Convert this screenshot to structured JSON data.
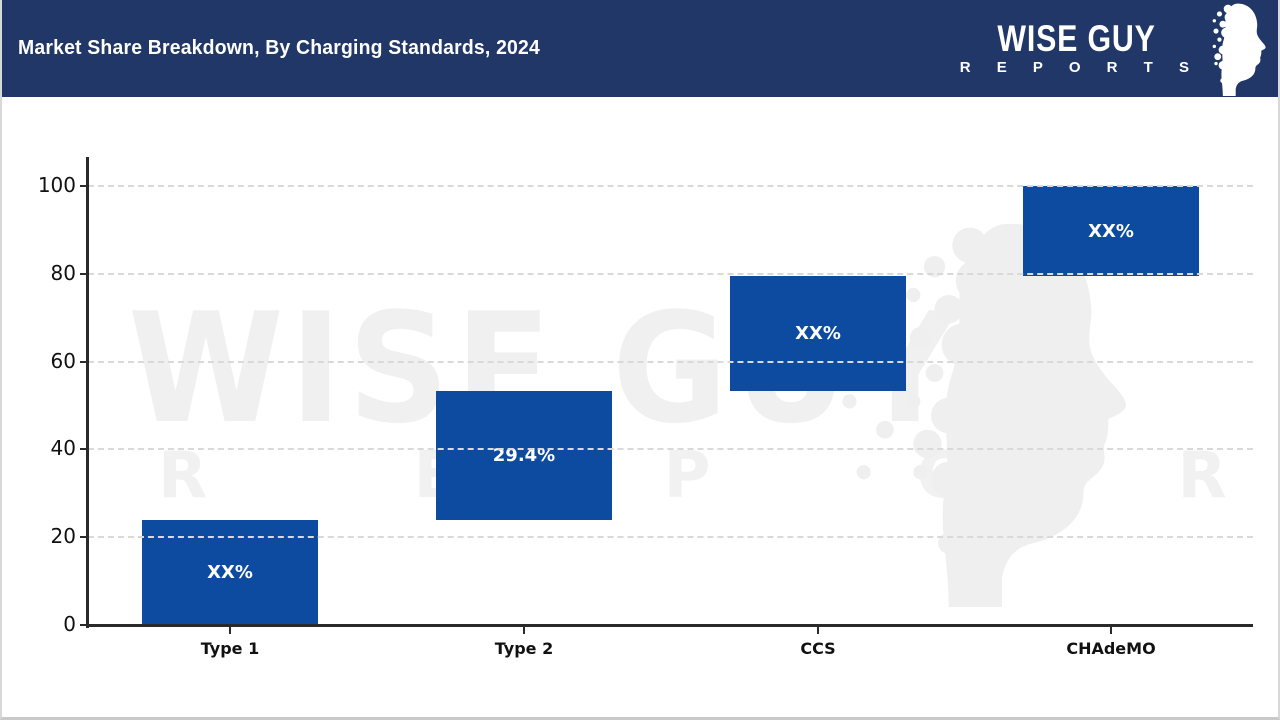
{
  "header": {
    "title": "Market Share Breakdown, By Charging Standards, 2024",
    "bg_color": "#203767",
    "logo": {
      "line1": "WISE GUY",
      "line2": "R E P O R T S",
      "icon": "wiseguy-head-icon"
    }
  },
  "watermark": {
    "line1": "WISE GUY",
    "line2": "R E P O R T S",
    "icon": "wiseguy-head-watermark-icon"
  },
  "chart_data": {
    "type": "bar",
    "subtype": "floating-waterfall",
    "title": "Market Share Breakdown, By Charging Standards, 2024",
    "xlabel": "",
    "ylabel": "",
    "categories": [
      "Type 1",
      "Type 2",
      "CCS",
      "CHAdeMO"
    ],
    "segments": [
      {
        "category": "Type 1",
        "start": 0,
        "end": 24,
        "label": "XX%"
      },
      {
        "category": "Type 2",
        "start": 24,
        "end": 53.4,
        "label": "29.4%"
      },
      {
        "category": "CCS",
        "start": 53.4,
        "end": 79.4,
        "label": "XX%"
      },
      {
        "category": "CHAdeMO",
        "start": 79.4,
        "end": 100,
        "label": "XX%"
      }
    ],
    "bar_labels": [
      "XX%",
      "29.4%",
      "XX%",
      "XX%"
    ],
    "y_ticks": [
      0,
      20,
      40,
      60,
      80,
      100
    ],
    "ylim": [
      0,
      107
    ],
    "bar_color": "#0c4ba0",
    "grid": "horizontal-dashed",
    "grid_color": "#d9d9d9",
    "legend": "none"
  }
}
